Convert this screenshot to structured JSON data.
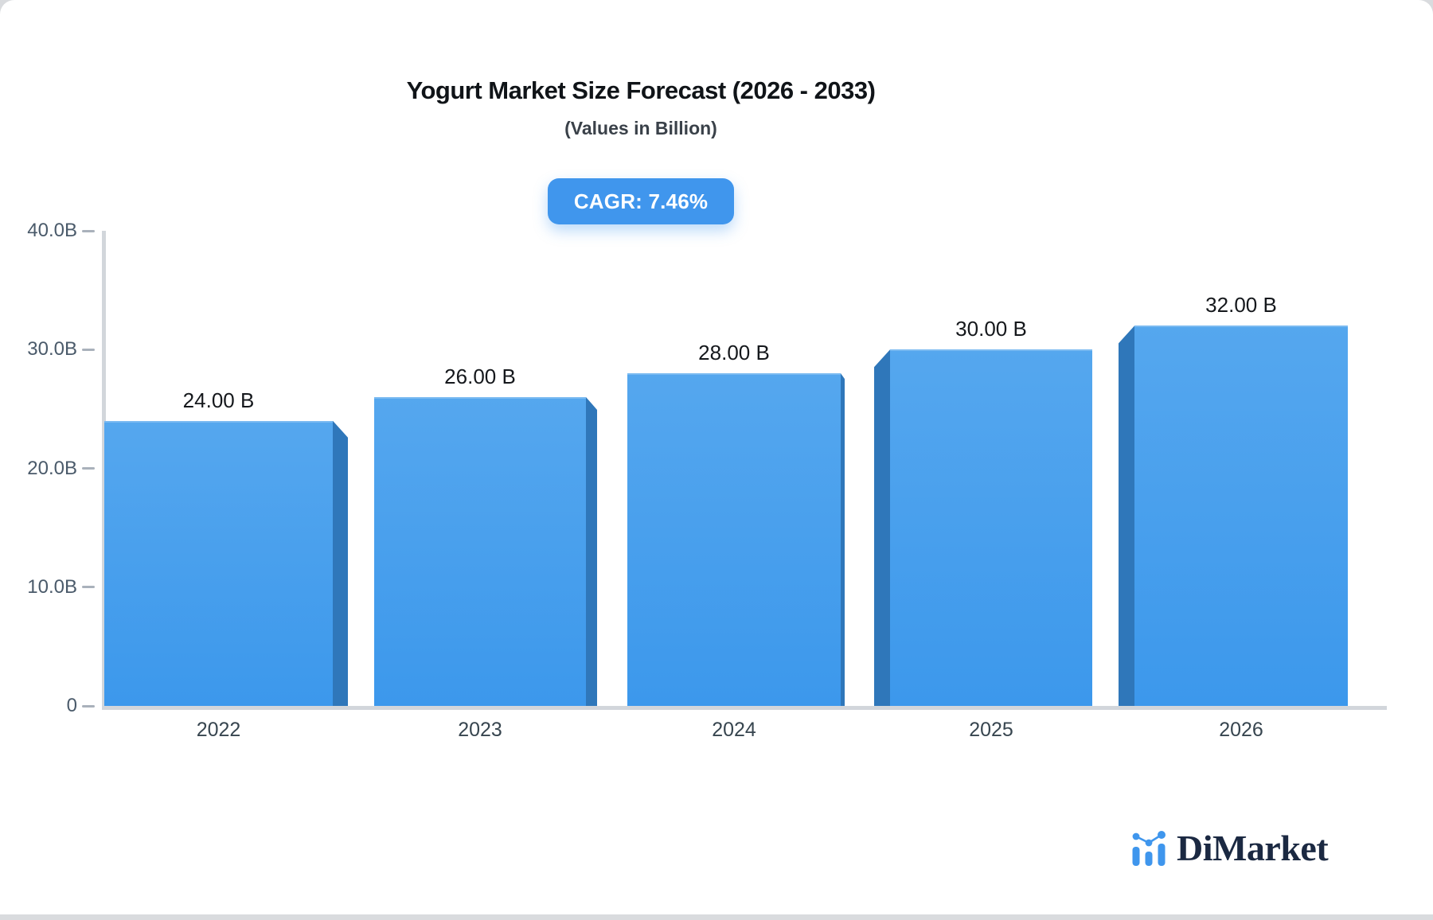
{
  "title": "Yogurt Market Size Forecast (2026 - 2033)",
  "subtitle": "(Values in Billion)",
  "cagr_badge": "CAGR: 7.46%",
  "chart_data": {
    "type": "bar",
    "title": "Yogurt Market Size Forecast (2026 - 2033)",
    "subtitle": "(Values in Billion)",
    "categories": [
      "2022",
      "2023",
      "2024",
      "2025",
      "2026"
    ],
    "values": [
      24,
      26,
      28,
      30,
      32
    ],
    "value_labels": [
      "24.00 B",
      "26.00 B",
      "28.00 B",
      "30.00 B",
      "32.00 B"
    ],
    "unit": "Billion",
    "cagr": "7.46%",
    "ylim": [
      0,
      40
    ],
    "grid": false,
    "legend": false,
    "y_ticks": [
      {
        "label": "40.0B",
        "value": 40
      },
      {
        "label": "30.0B",
        "value": 30
      },
      {
        "label": "20.0B",
        "value": 20
      },
      {
        "label": "10.0B",
        "value": 10
      },
      {
        "label": "0",
        "value": 0
      }
    ]
  },
  "branding": {
    "logo_text": "DiMarket",
    "logo_icon": "bar-chart-logo-icon"
  },
  "colors": {
    "bar_light_top": "#55a7ee",
    "bar_light_bottom": "#3c98ec",
    "bar_side": "#2f77ba",
    "badge_bg": "#4096ed",
    "axis_line": "#d2d6db",
    "title_text": "#101418",
    "logo_text": "#1b2942"
  }
}
